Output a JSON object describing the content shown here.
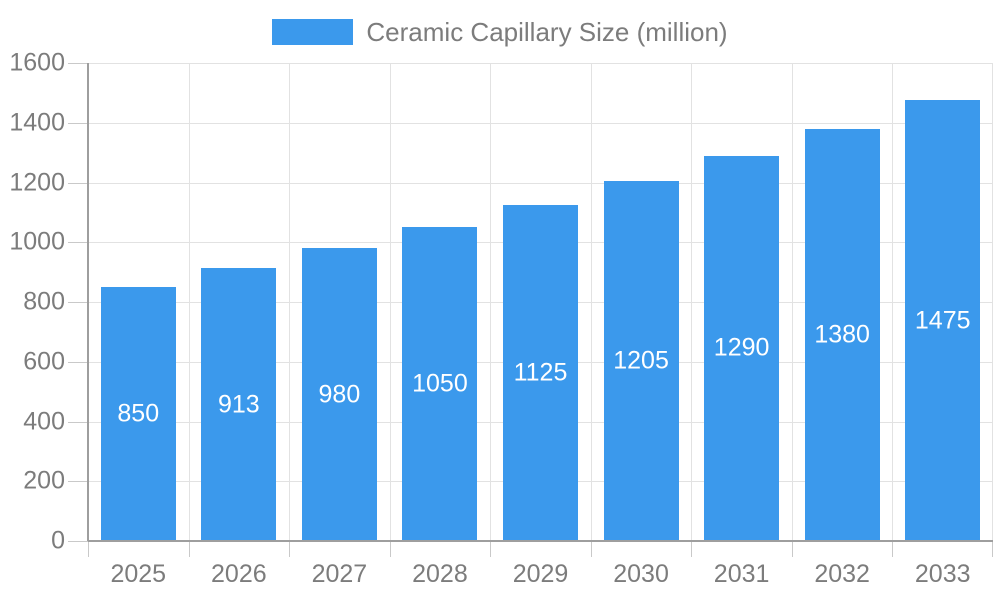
{
  "chart_data": {
    "type": "bar",
    "title": "Ceramic Capillary Size (million)",
    "categories": [
      "2025",
      "2026",
      "2027",
      "2028",
      "2029",
      "2030",
      "2031",
      "2032",
      "2033"
    ],
    "values": [
      850,
      913,
      980,
      1050,
      1125,
      1205,
      1290,
      1380,
      1475
    ],
    "data_labels": [
      "850",
      "913",
      "980",
      "1050",
      "1125",
      "1205",
      "1290",
      "1380",
      "1475"
    ],
    "xlabel": "",
    "ylabel": "",
    "ylim": [
      0,
      1600
    ],
    "ytick_step": 200,
    "ytick_labels": [
      "0",
      "200",
      "400",
      "600",
      "800",
      "1000",
      "1200",
      "1400",
      "1600"
    ],
    "grid": true,
    "legend_position": "top-center",
    "colors": {
      "bar": "#3b99ec",
      "value_label": "#ffffff",
      "grid": "#e2e2e2",
      "tick": "#c9c9c9",
      "axis": "#9e9e9e",
      "text": "#7c7c7c",
      "background": "#ffffff"
    }
  }
}
